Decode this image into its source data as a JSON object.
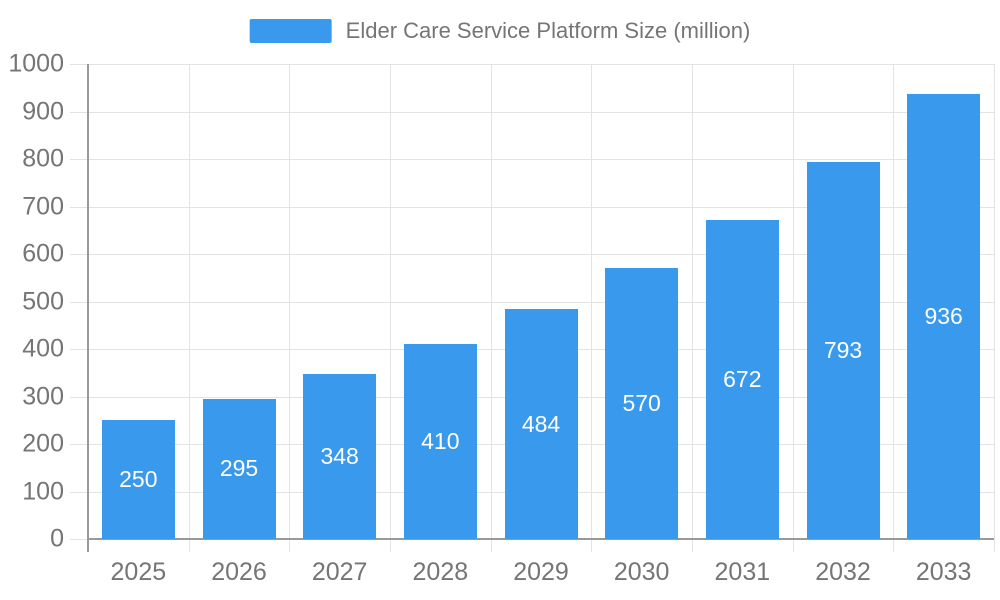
{
  "legend": {
    "label": "Elder Care Service Platform Size (million)"
  },
  "colors": {
    "bar_fill": "#3999EC",
    "axis_line": "#999999",
    "grid_line": "#E3E3E3",
    "axis_label": "#757575",
    "value_label": "#FFFFFF",
    "legend_text": "#757575",
    "background": "#FFFFFF"
  },
  "chart_data": {
    "type": "bar",
    "title": "Elder Care Service Platform Size (million)",
    "series_name": "Elder Care Service Platform Size (million)",
    "categories": [
      "2025",
      "2026",
      "2027",
      "2028",
      "2029",
      "2030",
      "2031",
      "2032",
      "2033"
    ],
    "values": [
      250,
      295,
      348,
      410,
      484,
      570,
      672,
      793,
      936
    ],
    "yticks": [
      0,
      100,
      200,
      300,
      400,
      500,
      600,
      700,
      800,
      900,
      1000
    ],
    "xlabel": "",
    "ylabel": "",
    "ylim": [
      0,
      1000
    ],
    "grid": true,
    "legend_position": "top",
    "value_label_position": "inside-center"
  }
}
